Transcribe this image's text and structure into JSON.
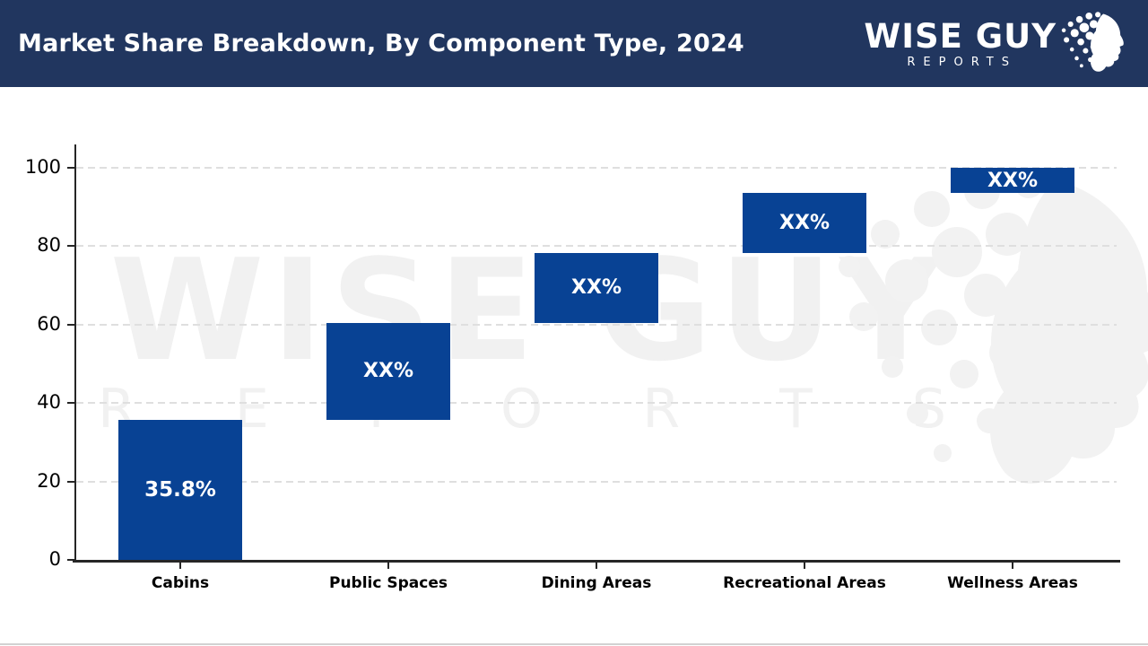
{
  "header": {
    "title": "Market Share Breakdown, By Component Type, 2024",
    "logo": {
      "line1": "WISE GUY",
      "line2": "REPORTS"
    }
  },
  "watermark": {
    "line1": "WISE GUY",
    "line2": "R E P O R T S"
  },
  "colors": {
    "header_bg": "#21365f",
    "bar": "#084294",
    "grid": "#dfdfdf",
    "axis": "#262626",
    "bar_label": "#ffffff",
    "watermark": "#f1f1f1"
  },
  "chart_data": {
    "type": "bar",
    "subtype": "waterfall",
    "title": "Market Share Breakdown, By Component Type, 2024",
    "categories": [
      "Cabins",
      "Public Spaces",
      "Dining Areas",
      "Recreational Areas",
      "Wellness Areas"
    ],
    "segments": [
      {
        "category": "Cabins",
        "start": 0,
        "end": 35.8,
        "label": "35.8%"
      },
      {
        "category": "Public Spaces",
        "start": 35.8,
        "end": 60.5,
        "label": "XX%"
      },
      {
        "category": "Dining Areas",
        "start": 60.5,
        "end": 78.3,
        "label": "XX%"
      },
      {
        "category": "Recreational Areas",
        "start": 78.3,
        "end": 93.5,
        "label": "XX%"
      },
      {
        "category": "Wellness Areas",
        "start": 93.5,
        "end": 100,
        "label": "XX%"
      }
    ],
    "y_ticks": [
      0,
      20,
      40,
      60,
      80,
      100
    ],
    "ylim": [
      0,
      105
    ],
    "xlabel": "",
    "ylabel": "",
    "grid": "horizontal-dashed",
    "legend": "none"
  }
}
